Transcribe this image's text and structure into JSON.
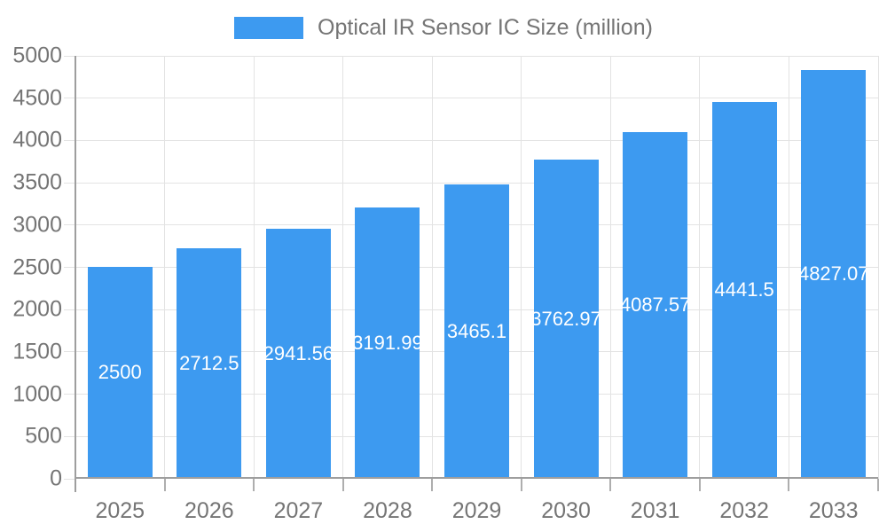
{
  "legend": {
    "label": "Optical IR Sensor IC Size (million)"
  },
  "colors": {
    "bar": "#3d9af0",
    "grid": "#e3e3e3",
    "axis": "#9e9e9e",
    "boundary_tick": "#aeaeae",
    "tick_text": "#757575",
    "bar_label_text": "#ffffff",
    "background": "#ffffff"
  },
  "chart_data": {
    "type": "bar",
    "title": "Optical IR Sensor IC Size (million)",
    "categories": [
      "2025",
      "2026",
      "2027",
      "2028",
      "2029",
      "2030",
      "2031",
      "2032",
      "2033"
    ],
    "values": [
      2500,
      2712.5,
      2941.56,
      3191.99,
      3465.1,
      3762.97,
      4087.57,
      4441.5,
      4827.07
    ],
    "value_labels": [
      "2500",
      "2712.5",
      "2941.56",
      "3191.99",
      "3465.1",
      "3762.97",
      "4087.57",
      "4441.5",
      "4827.07"
    ],
    "xlabel": "",
    "ylabel": "",
    "ylim": [
      0,
      5000
    ],
    "ytick_step": 500,
    "ytick_labels": [
      "0",
      "500",
      "1000",
      "1500",
      "2000",
      "2500",
      "3000",
      "3500",
      "4000",
      "4500",
      "5000"
    ],
    "grid": true,
    "legend_position": "top-center",
    "bar_label_position": "center"
  }
}
